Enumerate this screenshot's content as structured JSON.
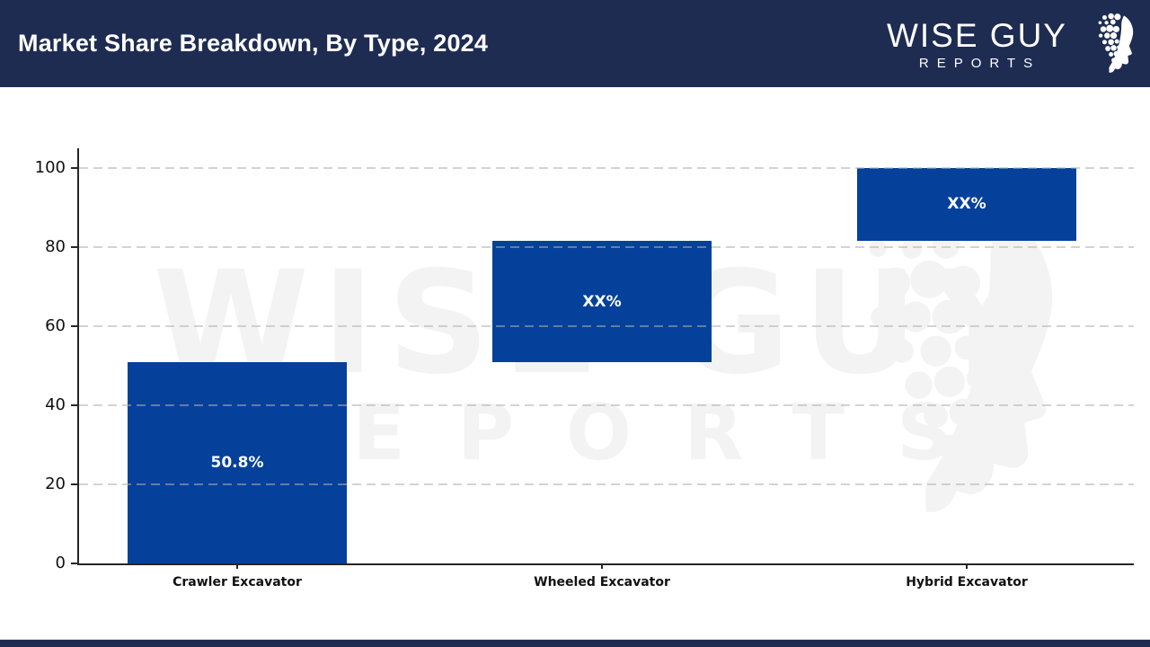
{
  "header": {
    "title": "Market Share Breakdown, By Type, 2024",
    "brand": {
      "line1": "WISE GUY",
      "line2": "REPORTS"
    }
  },
  "watermark": {
    "line1": "WISE GUY",
    "line2": "REPORTS"
  },
  "chart_data": {
    "type": "bar",
    "variant": "waterfall-floating-bars",
    "title": "Market Share Breakdown, By Type, 2024",
    "categories": [
      "Crawler Excavator",
      "Wheeled Excavator",
      "Hybrid Excavator"
    ],
    "series": [
      {
        "name": "Market Share (%)",
        "segments": [
          {
            "category": "Crawler Excavator",
            "start": 0,
            "end": 50.8,
            "label": "50.8%"
          },
          {
            "category": "Wheeled Excavator",
            "start": 50.8,
            "end": 81.6,
            "label": "XX%"
          },
          {
            "category": "Hybrid Excavator",
            "start": 81.6,
            "end": 100,
            "label": "XX%"
          }
        ]
      }
    ],
    "xlabel": "",
    "ylabel": "",
    "ylim": [
      0,
      105
    ],
    "yticks": [
      0,
      20,
      40,
      60,
      80,
      100
    ],
    "grid": "horizontal dashed, drawn over bars",
    "legend": "none"
  },
  "colors": {
    "header_bg": "#1e2c52",
    "footer_bg": "#1e2c52",
    "bar": "#05419a",
    "bar_label": "#ffffff",
    "axis": "#262626",
    "tick_text": "#111111",
    "watermark": "#f3f3f3"
  }
}
